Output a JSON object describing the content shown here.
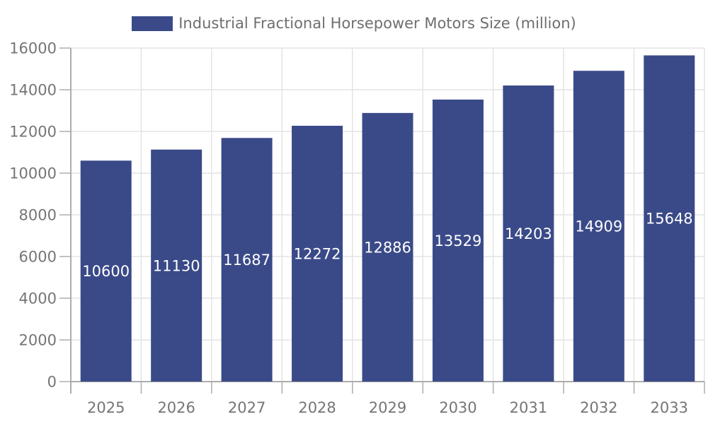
{
  "chart_data": {
    "type": "bar",
    "title": "Industrial Fractional Horsepower Motors Size (million)",
    "categories": [
      "2025",
      "2026",
      "2027",
      "2028",
      "2029",
      "2030",
      "2031",
      "2032",
      "2033"
    ],
    "values": [
      10600,
      11130,
      11687,
      12272,
      12886,
      13529,
      14203,
      14909,
      15648
    ],
    "xlabel": "",
    "ylabel": "",
    "ylim": [
      0,
      16000
    ],
    "yticks": [
      0,
      2000,
      4000,
      6000,
      8000,
      10000,
      12000,
      14000,
      16000
    ],
    "grid": true,
    "legend_position": "top",
    "value_label_position": "inside-center",
    "colors": {
      "bar": "#3A4A88",
      "grid": "#E4E4E4",
      "axis": "#ADADAD",
      "tick_label": "#757575",
      "title": "#6E6E6E",
      "value_label": "#FFFFFF",
      "background": "#FFFFFF"
    }
  }
}
